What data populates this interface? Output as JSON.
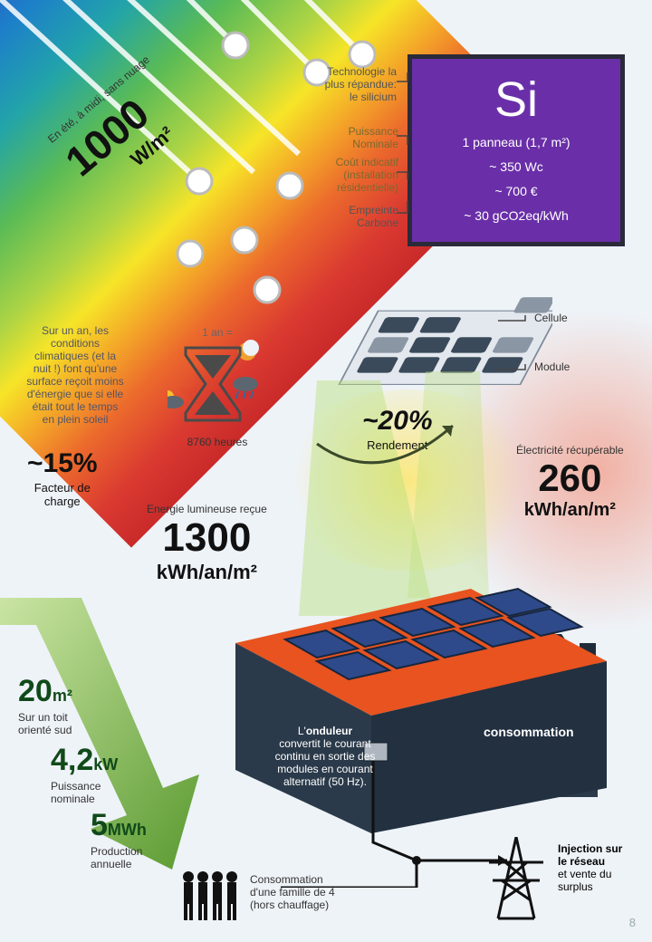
{
  "page_number": "8",
  "irradiance": {
    "context": "En été, à midi, sans nuage",
    "value": "1000",
    "unit": "W/m²"
  },
  "si": {
    "symbol": "Si",
    "panel": "1 panneau (1,7 m²)",
    "power": "~ 350 Wc",
    "price": "~ 700 €",
    "carbon": "~ 30 gCO2eq/kWh",
    "labels": {
      "tech": "Technologie la\nplus répandue:\nle silicium",
      "nominal": "Puissance\nNominale",
      "cost": "Coût indicatif\n(installation\nrésidentielle)",
      "carbon": "Empreinte\nCarbone"
    }
  },
  "capacity_factor": {
    "desc": "Sur un an, les\nconditions\nclimatiques (et la\nnuit !) font qu'une\nsurface reçoit moins\nd'énergie que si elle\nétait tout le temps\nen plein soleil",
    "value": "~15%",
    "label": "Facteur de\ncharge"
  },
  "year": {
    "title": "1 an =",
    "hours": "8760 heures"
  },
  "lum_energy": {
    "label": "Energie lumineuse reçue",
    "value": "1300",
    "unit": "kWh/an/m²"
  },
  "efficiency": {
    "value": "~20%",
    "label": "Rendement"
  },
  "recoverable": {
    "label": "Électricité récupérable",
    "value": "260",
    "unit": "kWh/an/m²"
  },
  "module_labels": {
    "cell": "Cellule",
    "module": "Module"
  },
  "roof": {
    "area_n": "20",
    "area_u": "m²",
    "area_lab": "Sur un toit\norienté sud",
    "power_n": "4,2",
    "power_u": "kW",
    "power_lab": "Puissance\nnominale",
    "prod_n": "5",
    "prod_u": "MWh",
    "prod_lab": "Production\nannuelle"
  },
  "house": {
    "inverter": "L'onduleur\nconvertit le courant\ncontinu en sortie des\nmodules en courant\nalternatif (50 Hz).",
    "inverter_bold": "onduleur",
    "consumption": "consommation"
  },
  "family": "Consommation\nd'une famille de 4\n(hors chauffage)",
  "grid": {
    "bold": "Injection sur\nle réseau",
    "rest": "et vente du\nsurplus"
  },
  "colors": {
    "si_box": "#6a2fa8",
    "si_border": "#2a2a3a",
    "roof_orange": "#e8531f",
    "house_dark": "#2b3a4a",
    "panel_blue": "#2e4a8a",
    "green_arrow": "#6fae3f",
    "green_arrow_dark": "#4b8f28",
    "sun_yellow": "#fbc02d",
    "moon": "#f0a030",
    "cloud": "#5c6670"
  }
}
